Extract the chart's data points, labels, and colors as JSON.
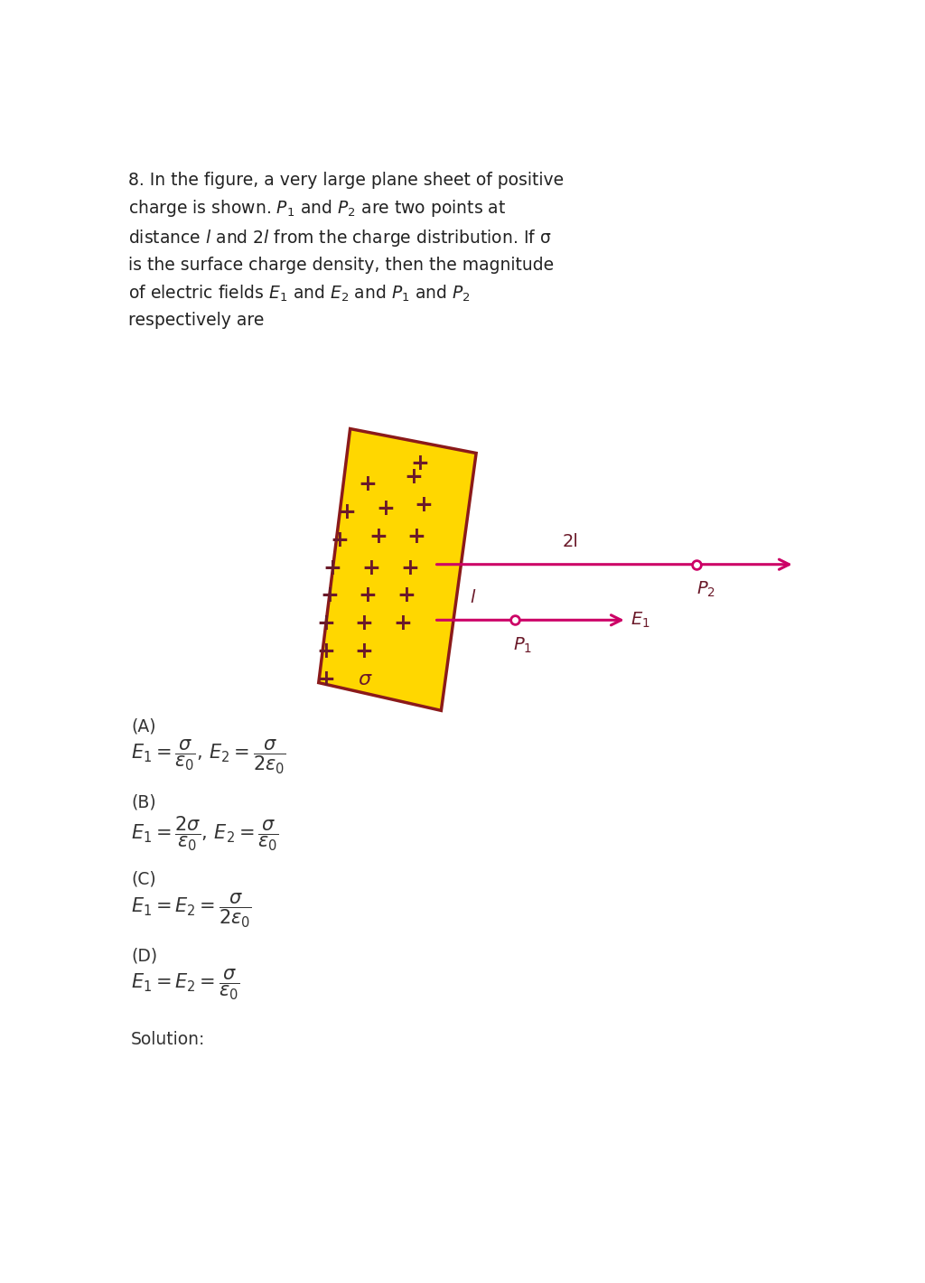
{
  "bg_color": "#ffffff",
  "title_text": "8. In the figure, a very large plane sheet of positive\ncharge is shown. $P_1$ and $P_2$ are two points at\ndistance $l$ and $2l$ from the charge distribution. If σ\nis the surface charge density, then the magnitude\nof electric fields $E_1$ and $E_2$ and $P_1$ and $P_2$\nrespectively are",
  "sheet_color": "#FFD700",
  "sheet_border_color": "#8B1A1A",
  "plus_color": "#6B1A2A",
  "arrow_color": "#CC0066",
  "label_color": "#6B1A2A",
  "options": [
    {
      "label": "(A)",
      "eq": "$E_1 = \\dfrac{\\sigma}{\\varepsilon_0},\\, E_2 = \\dfrac{\\sigma}{2\\varepsilon_0}$"
    },
    {
      "label": "(B)",
      "eq": "$E_1 = \\dfrac{2\\sigma}{\\varepsilon_0},\\, E_2 = \\dfrac{\\sigma}{\\varepsilon_0}$"
    },
    {
      "label": "(C)",
      "eq": "$E_1 = E_2 = \\dfrac{\\sigma}{2\\varepsilon_0}$"
    },
    {
      "label": "(D)",
      "eq": "$E_1 = E_2 = \\dfrac{\\sigma}{\\varepsilon_0}$"
    }
  ],
  "solution_label": "Solution:"
}
